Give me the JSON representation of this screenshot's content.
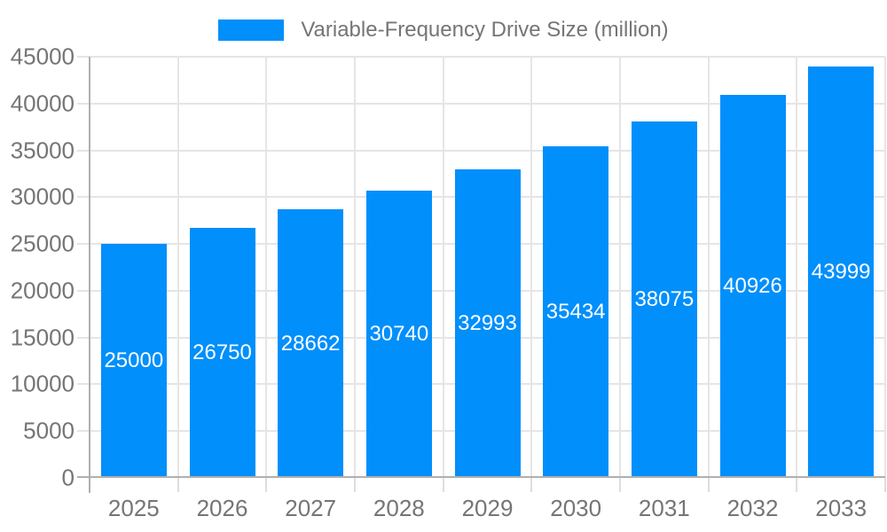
{
  "chart_data": {
    "type": "bar",
    "title": "Variable-Frequency Drive Size (million)",
    "legend_label": "Variable-Frequency Drive Size (million)",
    "legend_position": "top",
    "categories": [
      "2025",
      "2026",
      "2027",
      "2028",
      "2029",
      "2030",
      "2031",
      "2032",
      "2033"
    ],
    "series": [
      {
        "name": "Variable-Frequency Drive Size (million)",
        "values": [
          25000,
          26750,
          28662,
          30740,
          32993,
          35434,
          38075,
          40926,
          43999
        ]
      }
    ],
    "xlabel": "",
    "ylabel": "",
    "ylim": [
      0,
      45000
    ],
    "ytick_step": 5000,
    "grid": true,
    "value_labels_shown": true
  },
  "colors": {
    "bar": "#008FFB",
    "text": "#757575",
    "grid": "#e5e5e5",
    "tick": "#dedede",
    "axis": "#b0b0b0",
    "value_label": "#ffffff",
    "background": "#ffffff"
  }
}
